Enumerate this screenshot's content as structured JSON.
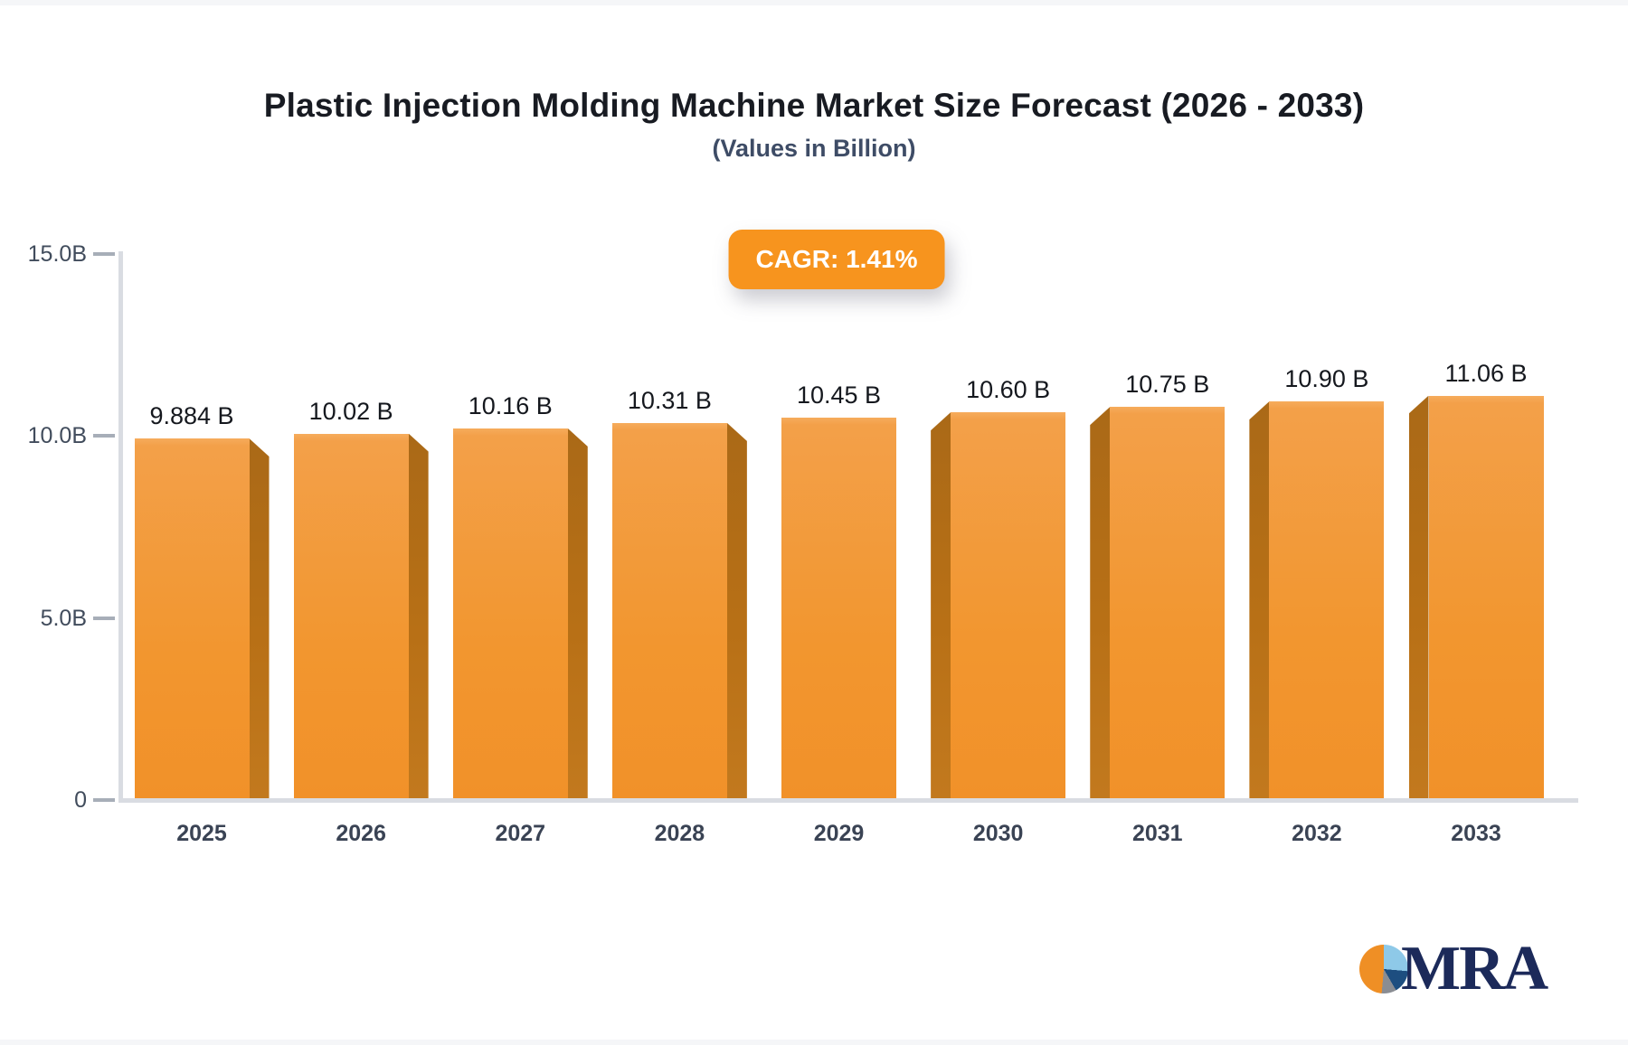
{
  "title": "Plastic Injection Molding Machine Market Size Forecast (2026 - 2033)",
  "subtitle": "(Values in Billion)",
  "cagr_badge": "CAGR: 1.41%",
  "logo": {
    "text": "MRA"
  },
  "colors": {
    "bar_top": "#f3a049",
    "bar_bottom": "#f19129",
    "bar_side": "#b87016",
    "badge": "#f7941e",
    "axis": "#d9dce2",
    "logo_navy": "#1c2a5a",
    "logo_orange": "#ef8f25",
    "logo_blue": "#8ec9e8"
  },
  "chart_data": {
    "type": "bar",
    "title": "Plastic Injection Molding Machine Market Size Forecast (2026 - 2033)",
    "subtitle": "(Values in Billion)",
    "categories": [
      "2025",
      "2026",
      "2027",
      "2028",
      "2029",
      "2030",
      "2031",
      "2032",
      "2033"
    ],
    "values": [
      9.884,
      10.02,
      10.16,
      10.31,
      10.45,
      10.6,
      10.75,
      10.9,
      11.06
    ],
    "value_labels": [
      "9.884 B",
      "10.02 B",
      "10.16 B",
      "10.31 B",
      "10.45 B",
      "10.60 B",
      "10.75 B",
      "10.90 B",
      "11.06 B"
    ],
    "unit": "B",
    "ylim": [
      0,
      15
    ],
    "ytick_values": [
      15,
      10,
      5,
      0
    ],
    "ytick_labels": [
      "15.0B",
      "10.0B",
      "5.0B",
      "0"
    ],
    "grid": false,
    "legend": "none",
    "bar_3d_side": [
      "right",
      "right",
      "right",
      "right",
      "none",
      "left",
      "left",
      "left",
      "left"
    ]
  }
}
